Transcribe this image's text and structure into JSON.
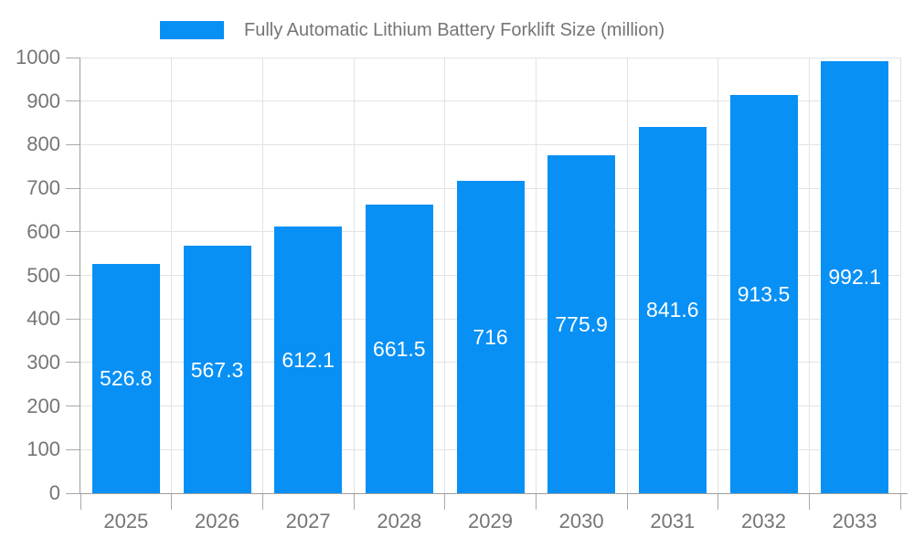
{
  "legend": {
    "label": "Fully Automatic Lithium Battery Forklift Size (million)"
  },
  "colors": {
    "bar": "#0890f5",
    "axis_text": "#757575",
    "gridline": "#e3e3e3",
    "axis_line": "#9e9e9e",
    "tick": "#a9a9a9",
    "value_label": "#ffffff",
    "background": "#ffffff"
  },
  "chart_data": {
    "type": "bar",
    "title": "",
    "categories": [
      "2025",
      "2026",
      "2027",
      "2028",
      "2029",
      "2030",
      "2031",
      "2032",
      "2033"
    ],
    "series": [
      {
        "name": "Fully Automatic Lithium Battery Forklift Size (million)",
        "values": [
          526.8,
          567.3,
          612.1,
          661.5,
          716,
          775.9,
          841.6,
          913.5,
          992.1
        ]
      }
    ],
    "value_labels": [
      "526.8",
      "567.3",
      "612.1",
      "661.5",
      "716",
      "775.9",
      "841.6",
      "913.5",
      "992.1"
    ],
    "xlabel": "",
    "ylabel": "",
    "ylim": [
      0,
      1000
    ],
    "yticks": [
      0,
      100,
      200,
      300,
      400,
      500,
      600,
      700,
      800,
      900,
      1000
    ],
    "grid": true,
    "legend_position": "top-center",
    "bar_label_position": "inside-center"
  }
}
